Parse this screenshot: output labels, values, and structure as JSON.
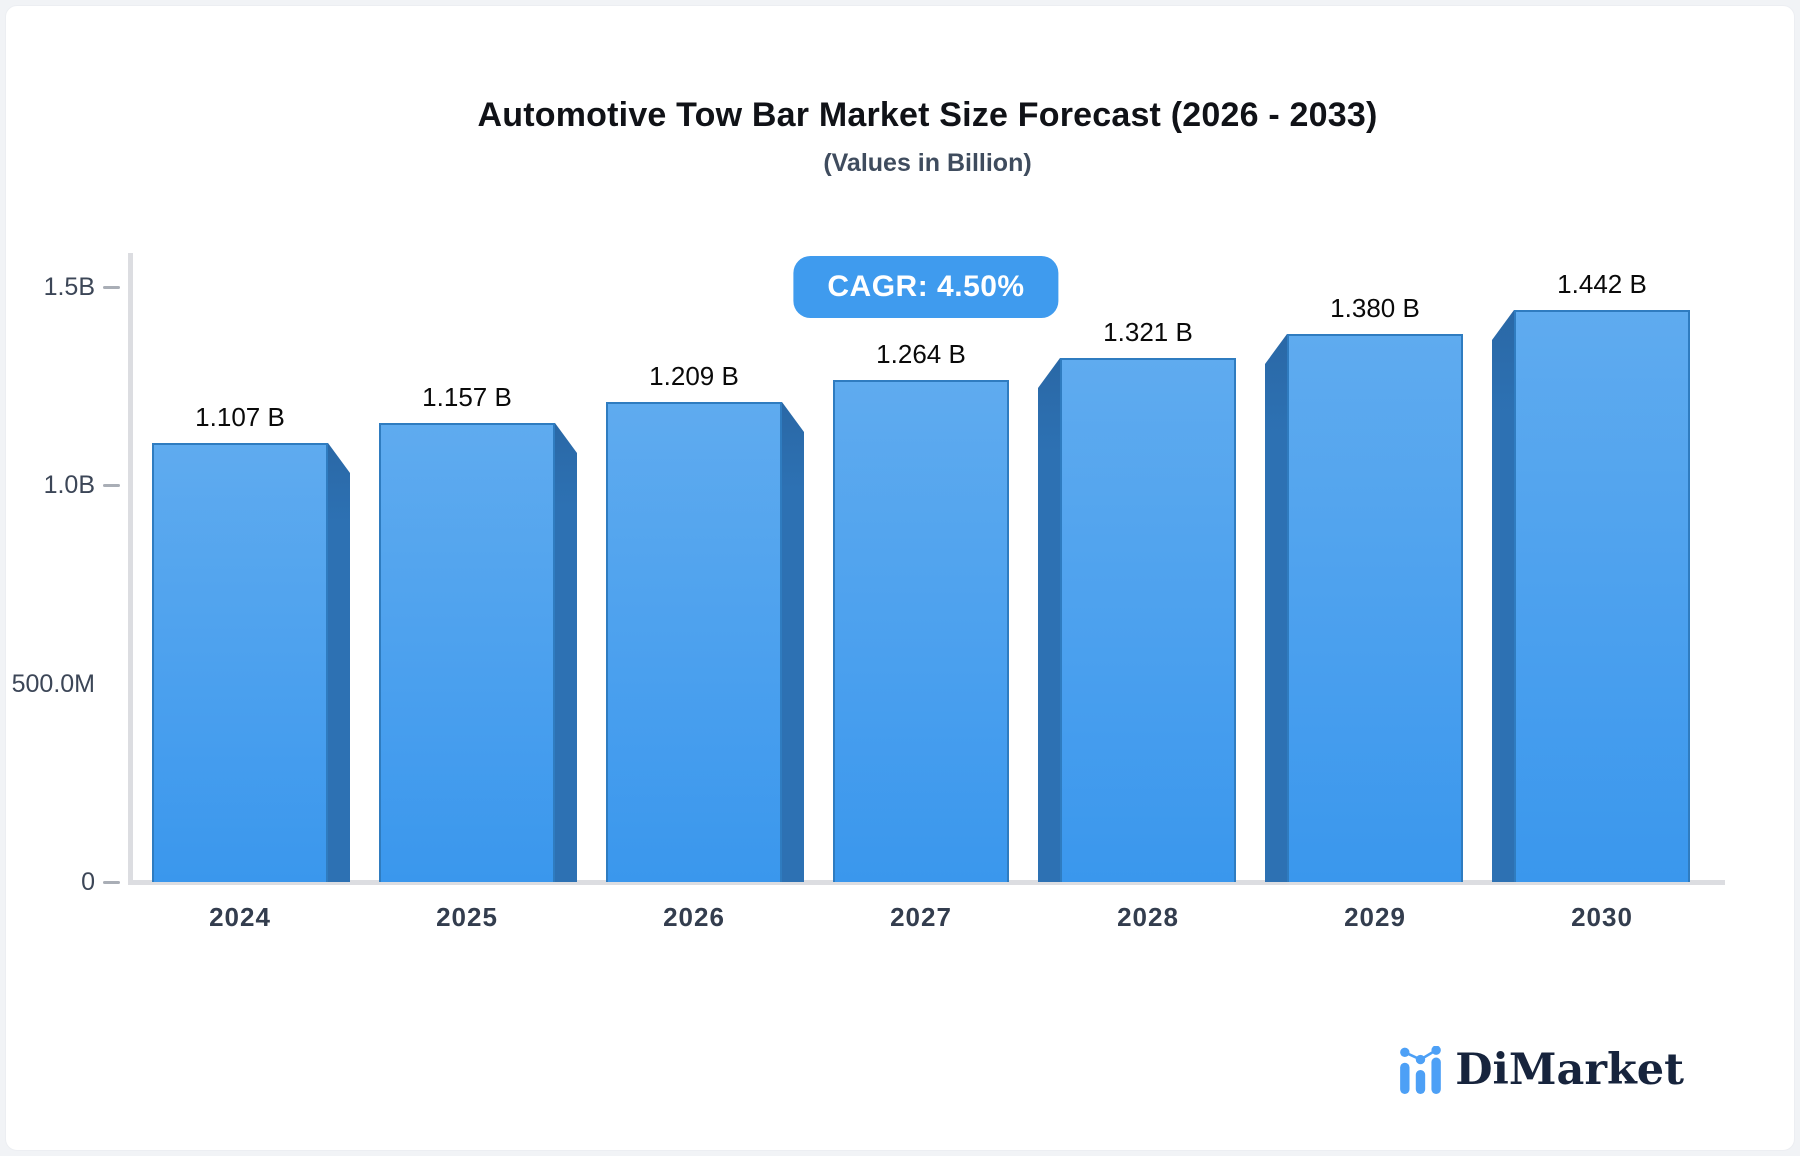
{
  "title": "Automotive Tow Bar Market Size Forecast (2026 - 2033)",
  "subtitle": "(Values in Billion)",
  "badge": {
    "label": "CAGR: 4.50%"
  },
  "chart_data": {
    "type": "bar",
    "categories": [
      "2024",
      "2025",
      "2026",
      "2027",
      "2028",
      "2029",
      "2030"
    ],
    "values": [
      1.107,
      1.157,
      1.209,
      1.264,
      1.321,
      1.38,
      1.442
    ],
    "value_labels": [
      "1.107 B",
      "1.157 B",
      "1.209 B",
      "1.264 B",
      "1.321 B",
      "1.380 B",
      "1.442 B"
    ],
    "title": "Automotive Tow Bar Market Size Forecast (2026 - 2033)",
    "subtitle": "(Values in Billion)",
    "annotation": "CAGR: 4.50%",
    "xlabel": "",
    "ylabel": "",
    "ylim": [
      0,
      1.5
    ],
    "y_ticks": [
      {
        "label": "1.5B",
        "value": 1.5,
        "dash": true
      },
      {
        "label": "1.0B",
        "value": 1.0,
        "dash": true
      },
      {
        "label": "500.0M",
        "value": 0.5,
        "dash": false
      },
      {
        "label": "0",
        "value": 0.0,
        "dash": true
      }
    ],
    "grid": false,
    "legend": "none",
    "bar_style": "3d-beveled"
  },
  "colors": {
    "accent": "#3f9bee",
    "bar_top": "#5fabef",
    "bar_bottom": "#3a97ed",
    "bar_border": "#2f7cc0",
    "bar_side": "#2d71b3",
    "bar_side_dark": "#2a68a6",
    "axis": "#dcdde1",
    "tick": "#a9aeb6",
    "logo_blue": "#4da0f6",
    "logo_navy": "#17243d"
  },
  "logo": {
    "text": "DiMarket",
    "icon": "mini-bar-chart-icon"
  }
}
